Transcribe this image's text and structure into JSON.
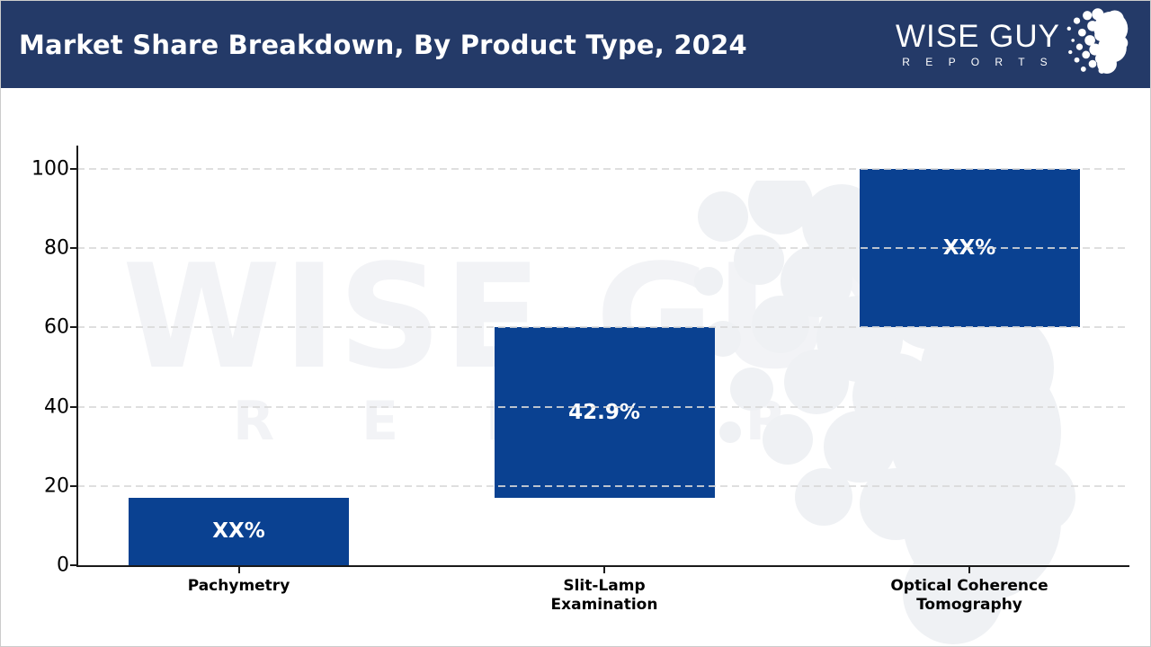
{
  "header": {
    "title": "Market Share Breakdown, By Product Type, 2024",
    "logo_line1": "WISE GUY",
    "logo_line2": "R E P O R T S"
  },
  "watermark": {
    "line1": "WISE GUY",
    "line2": "R E P O R T S"
  },
  "chart_data": {
    "type": "bar",
    "variant": "floating-waterfall",
    "title": "Market Share Breakdown, By Product Type, 2024",
    "categories": [
      "Pachymetry",
      "Slit-Lamp\nExamination",
      "Optical Coherence\nTomography"
    ],
    "bars": [
      {
        "category": "Pachymetry",
        "start": 0,
        "end": 17.1,
        "value_label": "XX%"
      },
      {
        "category": "Slit-Lamp Examination",
        "start": 17.1,
        "end": 60,
        "value_label": "42.9%"
      },
      {
        "category": "Optical Coherence Tomography",
        "start": 60,
        "end": 100,
        "value_label": "XX%"
      }
    ],
    "yticks": [
      0,
      20,
      40,
      60,
      80,
      100
    ],
    "ylim": [
      0,
      106
    ],
    "xlabel": "",
    "ylabel": "",
    "grid": "horizontal-dashed",
    "legend": "none",
    "bar_color": "#0a4191"
  },
  "colors": {
    "header_bg": "#243a68",
    "bar": "#0a4191",
    "grid": "#d9d9d9",
    "axis": "#1a1a1a",
    "watermark": "#f2f3f6"
  }
}
